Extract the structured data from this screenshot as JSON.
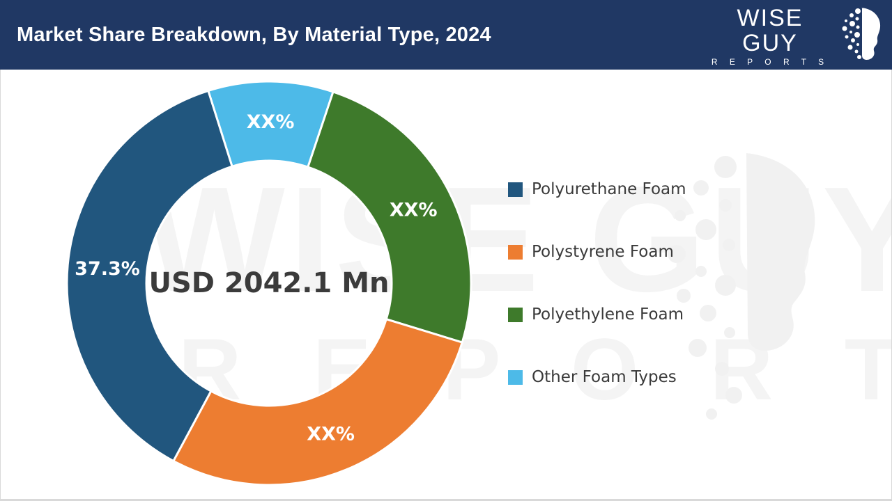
{
  "header": {
    "title": "Market Share Breakdown, By Material Type, 2024",
    "bg_color": "#203864",
    "logo": {
      "line1": "WISE GUY",
      "line2": "R E P O R T S"
    }
  },
  "watermark": {
    "line1": "WISE GUY",
    "line2": "R E P O R T S"
  },
  "chart_data": {
    "type": "pie",
    "subtype": "donut",
    "title": "Market Share Breakdown, By Material Type, 2024",
    "center_label": "USD 2042.1 Mn",
    "start_angle_deg": -17.5,
    "separator_color": "#ffffff",
    "segments": [
      {
        "name": "Other Foam Types",
        "display_label": "XX%",
        "sweep_pct": 10.0,
        "color": "#4DBAE8"
      },
      {
        "name": "Polyethylene Foam",
        "display_label": "XX%",
        "sweep_pct": 24.6,
        "color": "#3E7A2B"
      },
      {
        "name": "Polystyrene Foam",
        "display_label": "XX%",
        "sweep_pct": 28.1,
        "color": "#ED7D31"
      },
      {
        "name": "Polyurethane Foam",
        "display_label": "37.3%",
        "sweep_pct": 37.3,
        "color": "#21567E"
      }
    ]
  },
  "legend": {
    "items": [
      {
        "label": "Polyurethane Foam",
        "color": "#21567E"
      },
      {
        "label": "Polystyrene Foam",
        "color": "#ED7D31"
      },
      {
        "label": "Polyethylene Foam",
        "color": "#3E7A2B"
      },
      {
        "label": "Other Foam Types",
        "color": "#4DBAE8"
      }
    ]
  }
}
